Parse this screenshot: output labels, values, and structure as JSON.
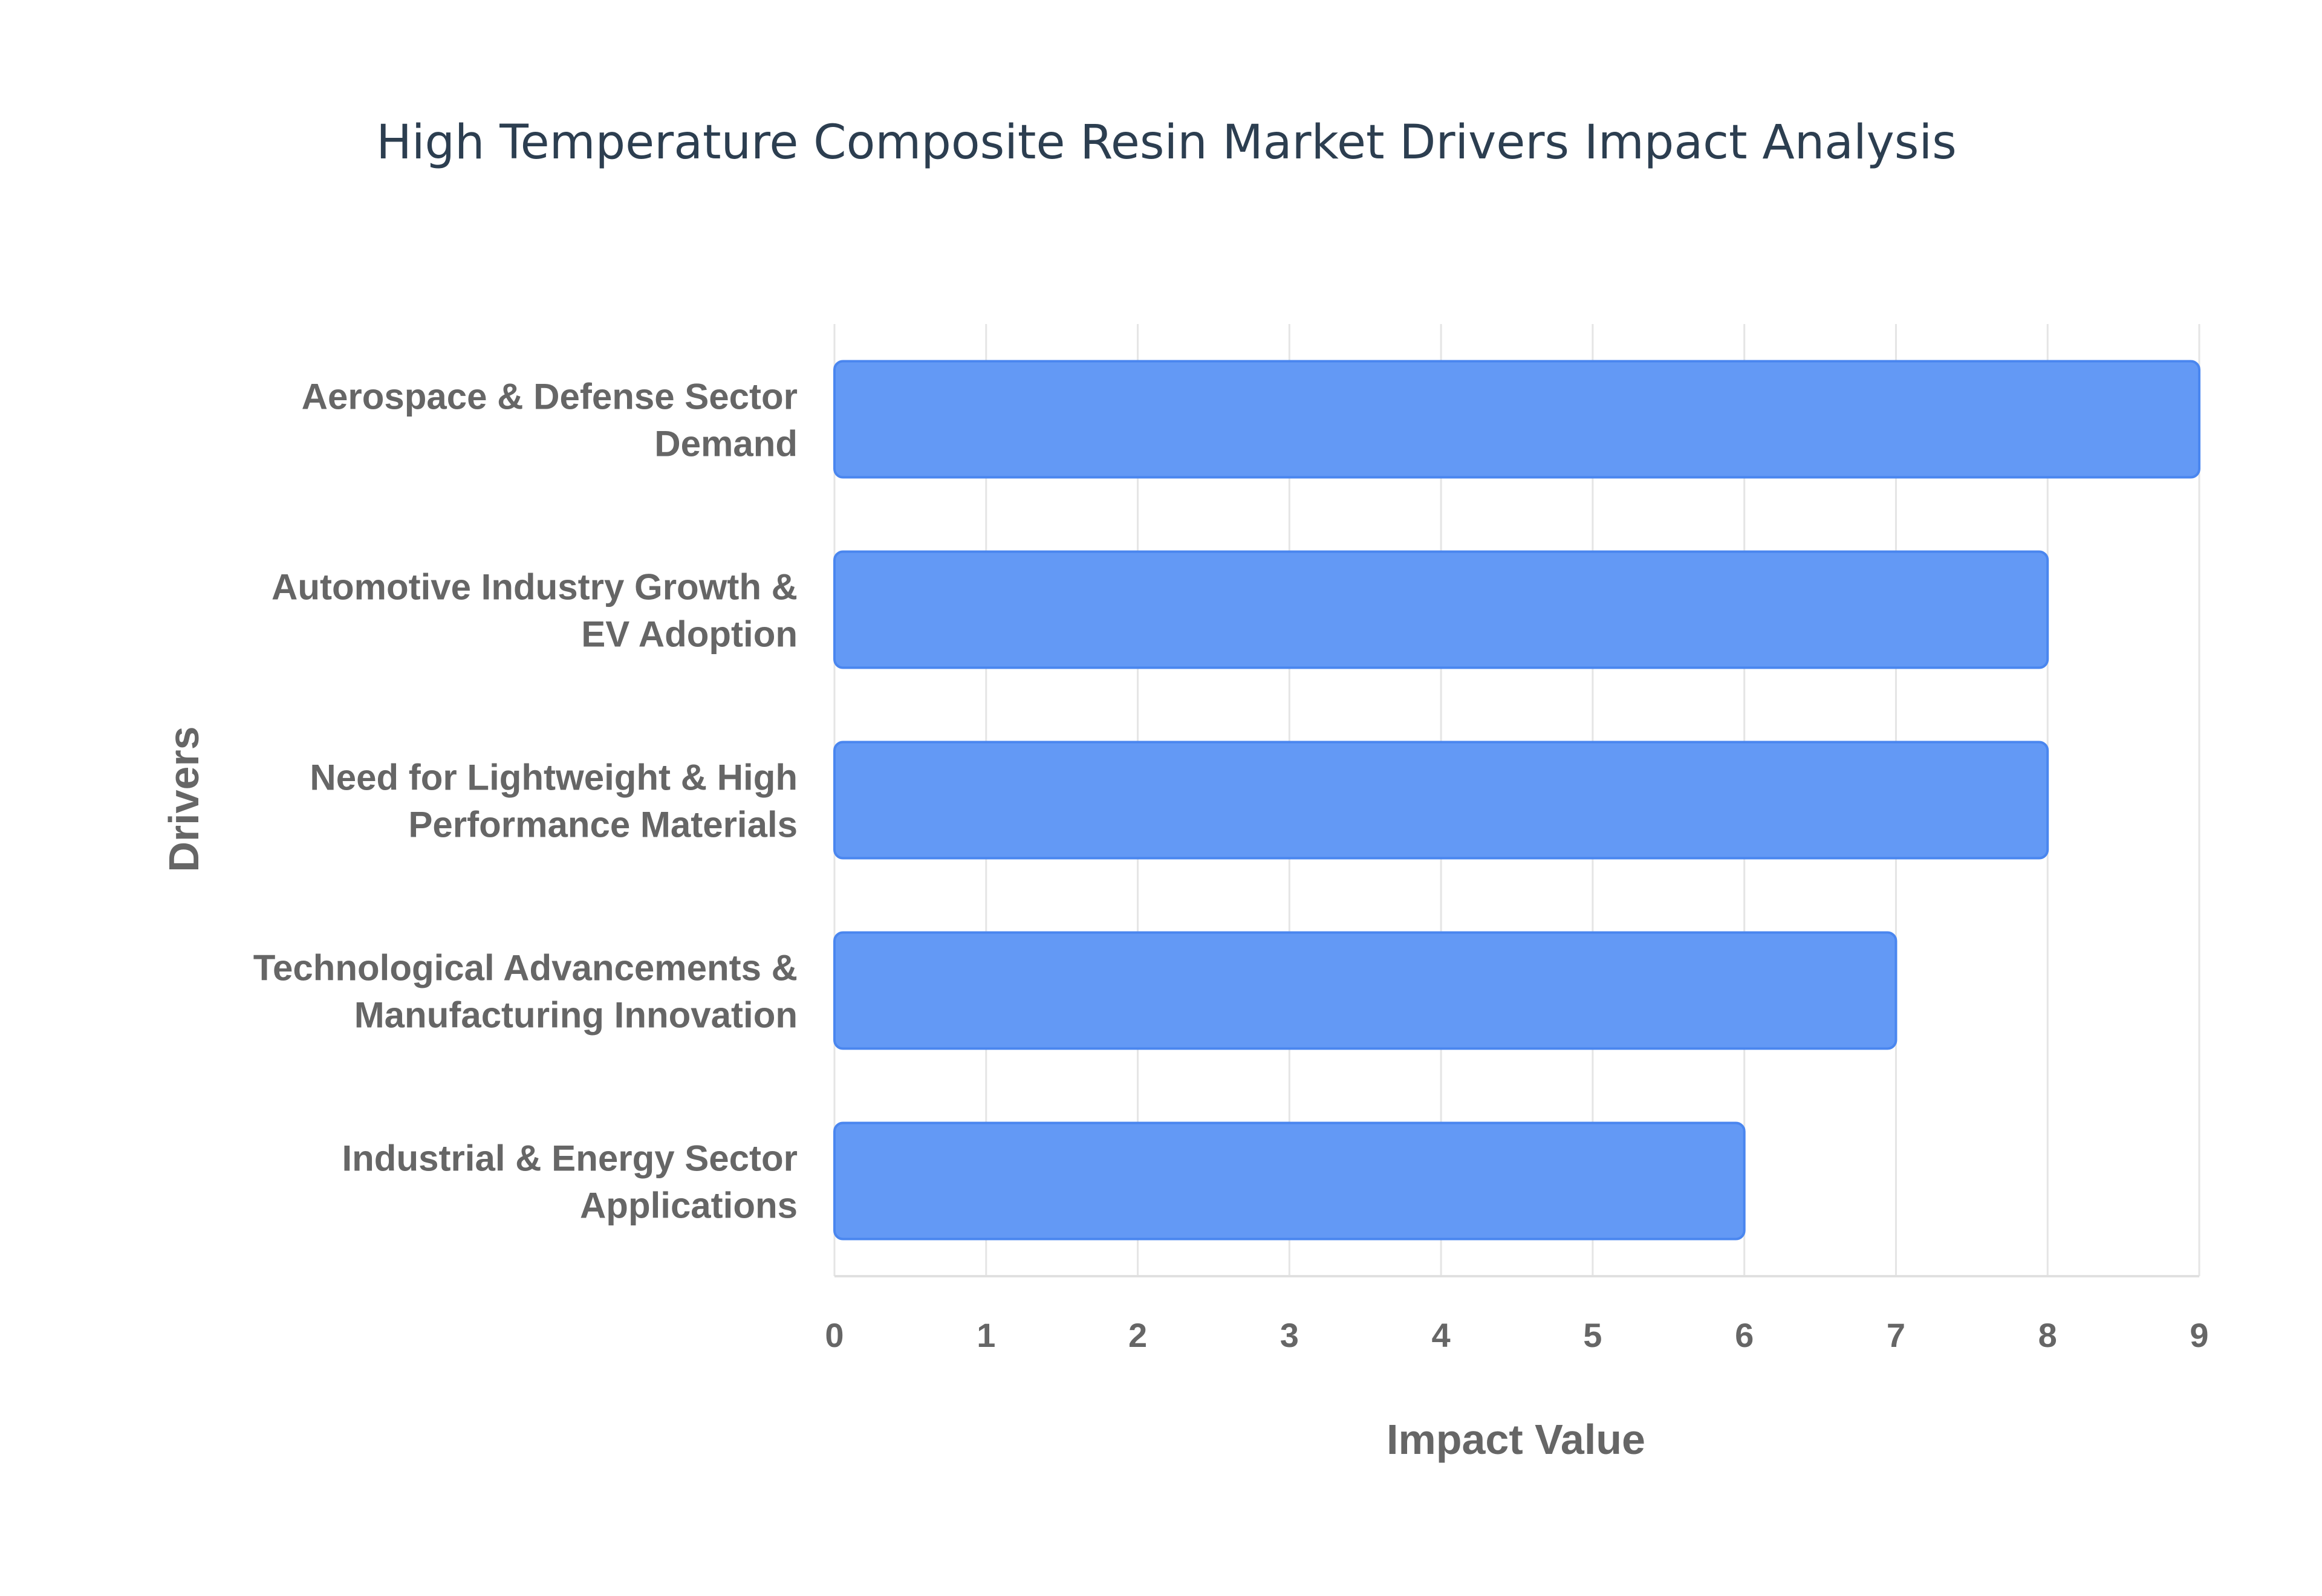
{
  "chart_data": {
    "type": "bar",
    "orientation": "horizontal",
    "title": "High Temperature Composite Resin Market Drivers Impact Analysis",
    "xlabel": "Impact Value",
    "ylabel": "Drivers",
    "categories": [
      [
        "Aerospace & Defense Sector",
        "Demand"
      ],
      [
        "Automotive Industry Growth &",
        "EV Adoption"
      ],
      [
        "Need for Lightweight & High",
        "Performance Materials"
      ],
      [
        "Technological Advancements &",
        "Manufacturing Innovation"
      ],
      [
        "Industrial & Energy Sector",
        "Applications"
      ]
    ],
    "values": [
      9,
      8,
      8,
      7,
      6
    ],
    "xlim": [
      0,
      9
    ],
    "xticks": [
      "0",
      "1",
      "2",
      "3",
      "4",
      "5",
      "6",
      "7",
      "8",
      "9"
    ],
    "grid": true,
    "colors": {
      "bar": "#6399f5",
      "bar_border": "#4a86ef",
      "grid": "#e5e5e5",
      "text": "#666666",
      "title": "#2c3e50"
    }
  }
}
